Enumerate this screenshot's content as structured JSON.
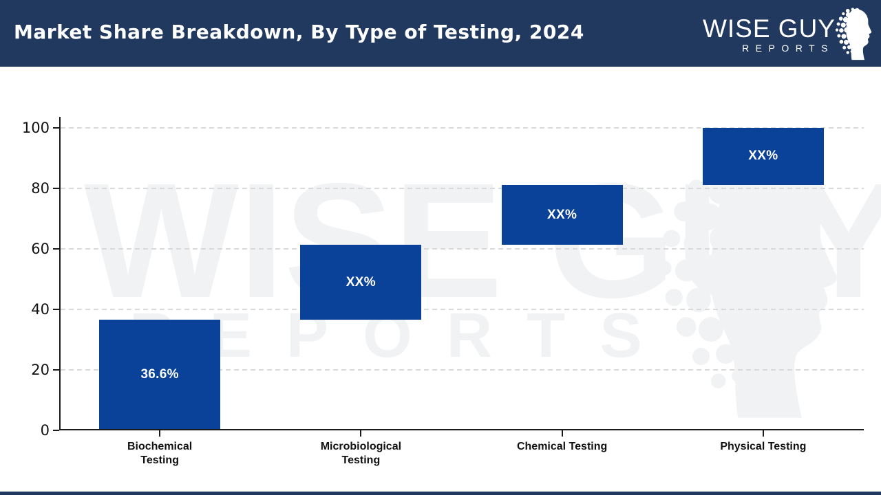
{
  "header": {
    "title": "Market Share Breakdown, By Type of Testing, 2024",
    "bg_color": "#22395f",
    "logo_text_primary": "WISE GUY",
    "logo_text_secondary": "REPORTS"
  },
  "watermark": {
    "primary": "WISE GUY",
    "secondary": "REPORTS",
    "color": "#f1f2f4"
  },
  "chart_data": {
    "type": "bar",
    "subtype": "waterfall",
    "title": "Market Share Breakdown, By Type of Testing, 2024",
    "categories": [
      [
        "Biochemical",
        "Testing"
      ],
      [
        "Microbiological",
        "Testing"
      ],
      [
        "Chemical Testing"
      ],
      [
        "Physical Testing"
      ]
    ],
    "segments": [
      {
        "category": "Biochemical Testing",
        "start": 0,
        "end": 36.6,
        "value": 36.6,
        "label": "36.6%"
      },
      {
        "category": "Microbiological Testing",
        "start": 36.6,
        "end": 61.3,
        "value": 24.7,
        "label": "XX%"
      },
      {
        "category": "Chemical Testing",
        "start": 61.3,
        "end": 81.2,
        "value": 19.9,
        "label": "XX%"
      },
      {
        "category": "Physical Testing",
        "start": 81.2,
        "end": 100,
        "value": 18.8,
        "label": "XX%"
      }
    ],
    "yticks": [
      0,
      20,
      40,
      60,
      80,
      100
    ],
    "ylim": [
      0,
      103.6
    ],
    "grid": true,
    "grid_color": "#d9d9d9",
    "axis_color": "#1a1a1a",
    "bar_color": "#0a4199",
    "bar_label_color": "#ffffff",
    "legend": "none"
  },
  "footer": {
    "bar_color": "#22395f"
  }
}
